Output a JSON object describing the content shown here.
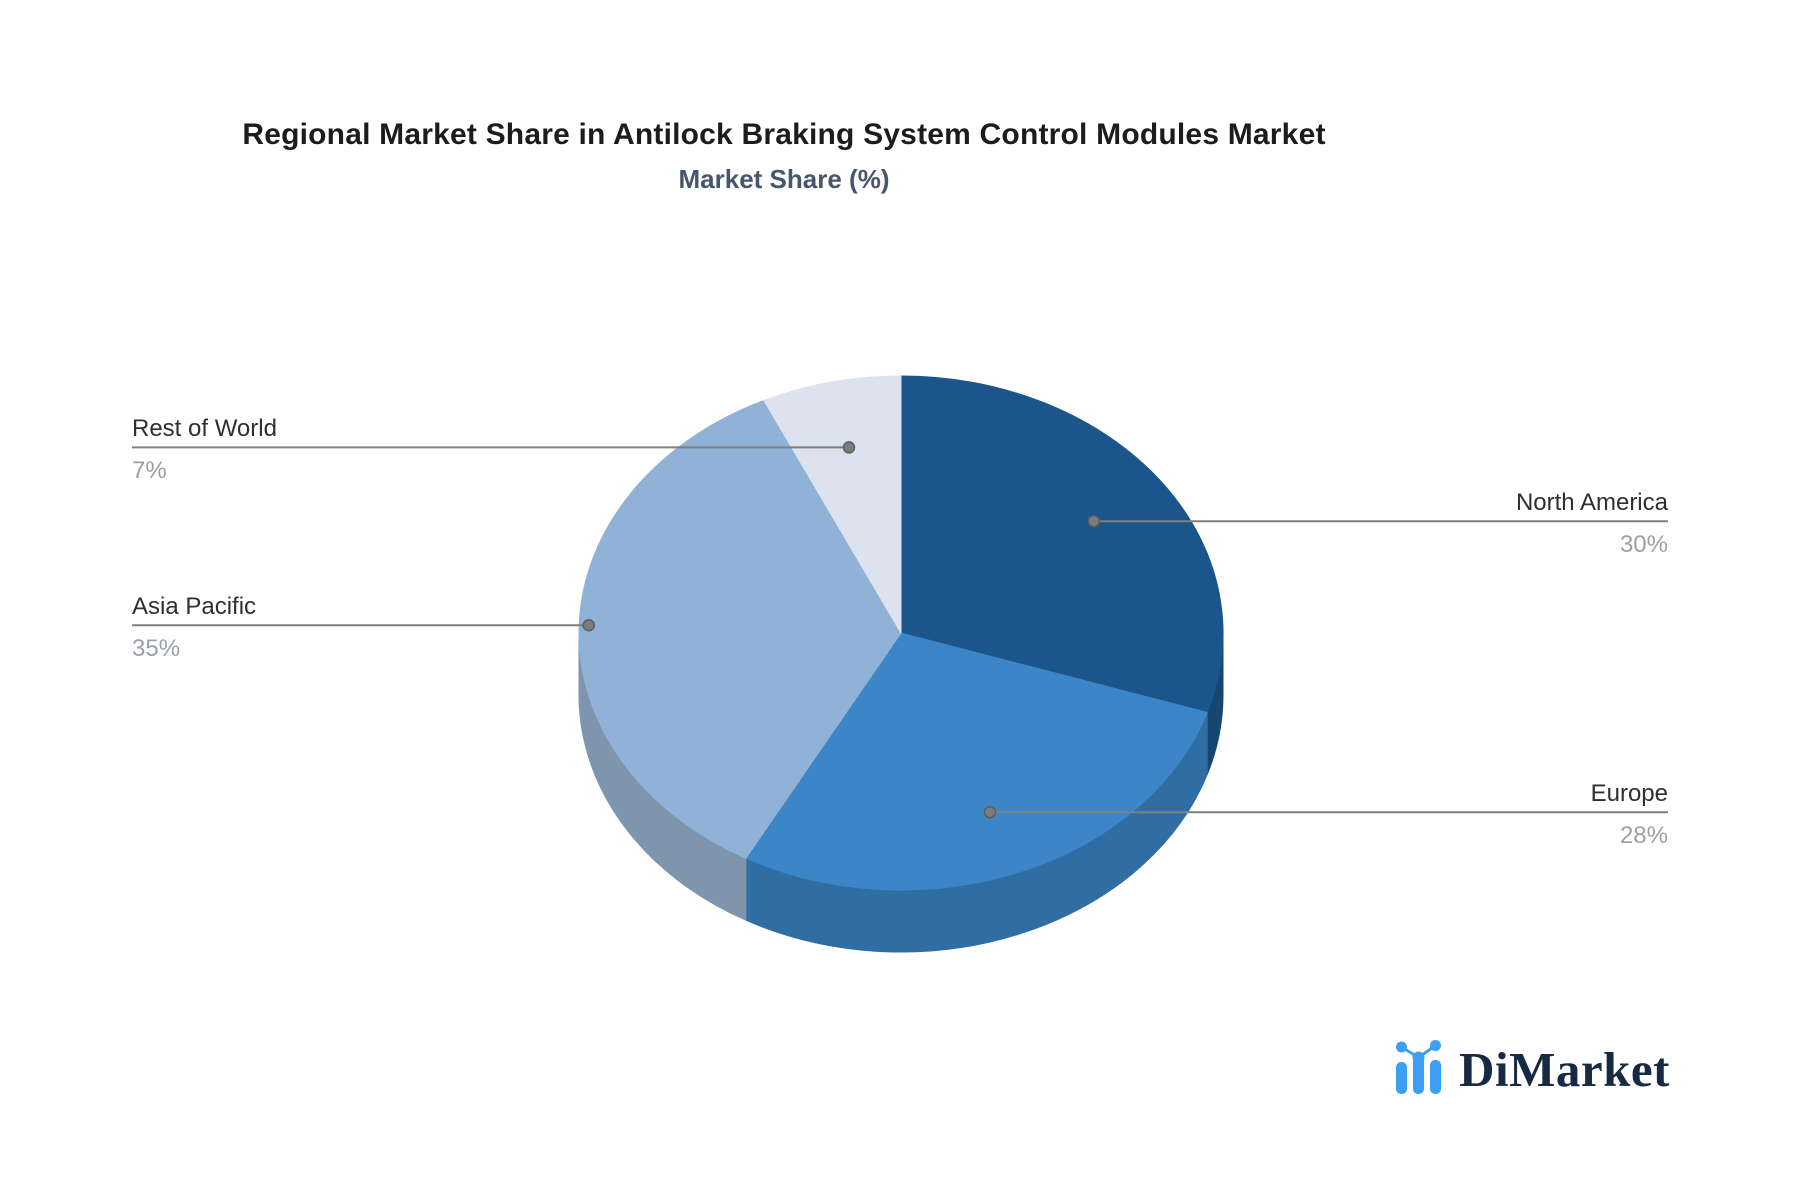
{
  "chart_data": {
    "type": "pie",
    "title": "Regional Market Share in Antilock Braking System Control Modules Market",
    "subtitle": "Market Share (%)",
    "unit": "%",
    "style": "3d",
    "start_angle_deg": 0,
    "direction": "clockwise",
    "legend_position": "none",
    "label_style": "leader-lines",
    "connector_color": "#7f7f7f",
    "slices": [
      {
        "label": "North America",
        "value": 30,
        "display": "30%",
        "color": "#1a568c",
        "side_color": "#15476f"
      },
      {
        "label": "Europe",
        "value": 28,
        "display": "28%",
        "color": "#3c86c8",
        "side_color": "#2f6da3"
      },
      {
        "label": "Asia Pacific",
        "value": 35,
        "display": "35%",
        "color": "#91b2d7",
        "side_color": "#7e95ad"
      },
      {
        "label": "Rest of World",
        "value": 7,
        "display": "7%",
        "color": "#dde3ee",
        "side_color": "#bcc7d8"
      }
    ]
  },
  "brand": {
    "name": "DiMarket",
    "icon": "bar-line-chart-icon",
    "icon_color": "#3d9ff2",
    "text_color": "#172a44"
  }
}
